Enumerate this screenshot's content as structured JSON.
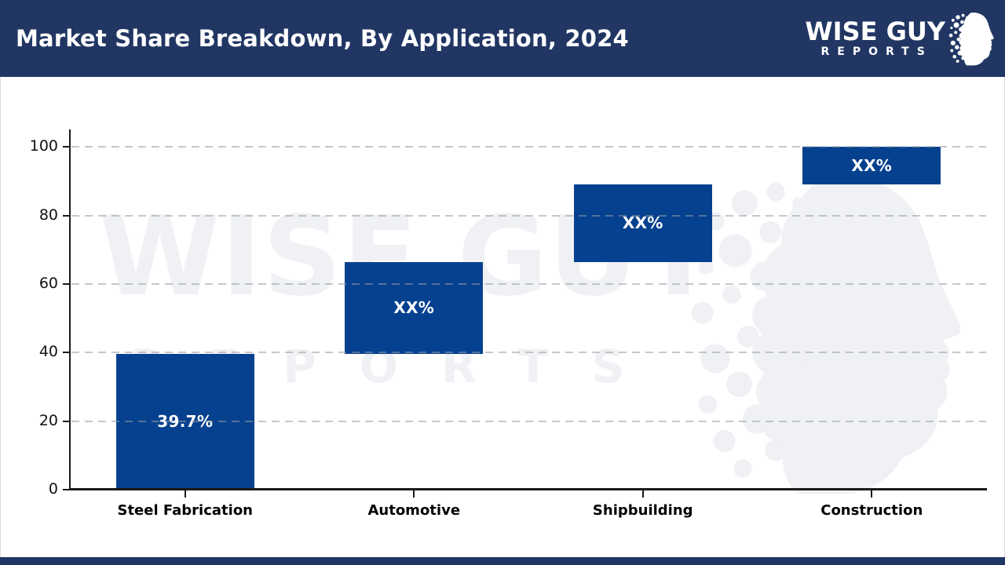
{
  "header": {
    "title": "Market Share Breakdown, By Application, 2024",
    "bg_color": "#213663",
    "logo": {
      "line1": "WISE GUY",
      "line2": "REPORTS"
    }
  },
  "watermark": {
    "line1": "WISE GUY",
    "line2": "REPORTS"
  },
  "footer": {
    "bg_color": "#213663"
  },
  "chart_data": {
    "type": "bar",
    "subtype": "stacked-waterfall",
    "title": "Market Share Breakdown, By Application, 2024",
    "categories": [
      "Steel Fabrication",
      "Automotive",
      "Shipbuilding",
      "Construction"
    ],
    "segments": [
      {
        "category": "Steel Fabrication",
        "start": 0,
        "end": 39.7,
        "label": "39.7%"
      },
      {
        "category": "Automotive",
        "start": 39.7,
        "end": 66.5,
        "label": "XX%"
      },
      {
        "category": "Shipbuilding",
        "start": 66.5,
        "end": 89.0,
        "label": "XX%"
      },
      {
        "category": "Construction",
        "start": 89.0,
        "end": 100,
        "label": "XX%"
      }
    ],
    "yticks": [
      0,
      20,
      40,
      60,
      80,
      100
    ],
    "ylim": [
      0,
      104
    ],
    "xlabel": "",
    "ylabel": "",
    "grid": "horizontal-dashed",
    "legend": "none",
    "bar_color": "#06418f",
    "label_color": "#ffffff",
    "gridline_color": "#d0d3d8",
    "axis_color": "#1a1a1a"
  }
}
